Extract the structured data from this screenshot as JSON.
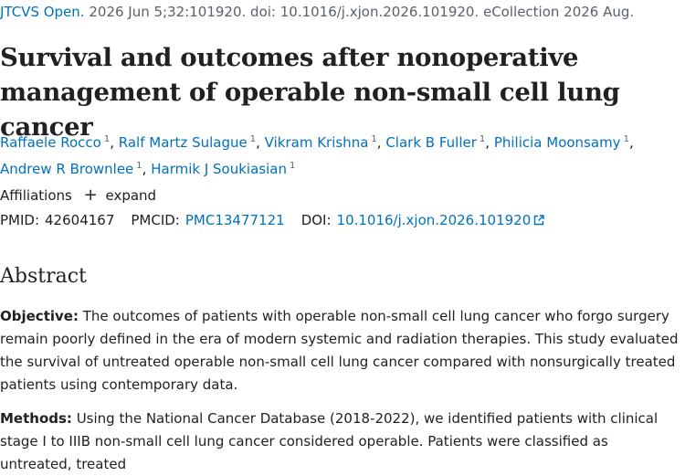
{
  "citation": {
    "journal": "JTCVS Open.",
    "details": "2026 Jun 5;32:101920. doi: 10.1016/j.xjon.2026.101920. eCollection 2026 Aug."
  },
  "title": "Survival and outcomes after nonoperative management of operable non-small cell lung cancer",
  "authors": [
    {
      "name": "Raffaele Rocco",
      "aff": "1"
    },
    {
      "name": "Ralf Martz Sulague",
      "aff": "1"
    },
    {
      "name": "Vikram Krishna",
      "aff": "1"
    },
    {
      "name": "Clark B Fuller",
      "aff": "1"
    },
    {
      "name": "Philicia Moonsamy",
      "aff": "1"
    },
    {
      "name": "Andrew R Brownlee",
      "aff": "1"
    },
    {
      "name": "Harmik J Soukiasian",
      "aff": "1"
    }
  ],
  "affiliations": {
    "label": "Affiliations",
    "toggle": "expand"
  },
  "identifiers": {
    "pmid_label": "PMID:",
    "pmid": "42604167",
    "pmcid_label": "PMCID:",
    "pmcid": "PMC13477121",
    "doi_label": "DOI:",
    "doi": "10.1016/j.xjon.2026.101920"
  },
  "abstract": {
    "heading": "Abstract",
    "objective_label": "Objective:",
    "objective_text": " The outcomes of patients with operable non-small cell lung cancer who forgo surgery remain poorly defined in the era of modern systemic and radiation therapies. This study evaluated the survival of untreated operable non-small cell lung cancer compared with nonsurgically treated patients using contemporary data.",
    "methods_label": "Methods:",
    "methods_text": " Using the National Cancer Database (2018-2022), we identified patients with clinical stage I to IIIB non-small cell lung cancer considered operable. Patients were classified as untreated, treated"
  },
  "icons": {
    "expand": "plus-icon",
    "external": "external-link-icon"
  }
}
